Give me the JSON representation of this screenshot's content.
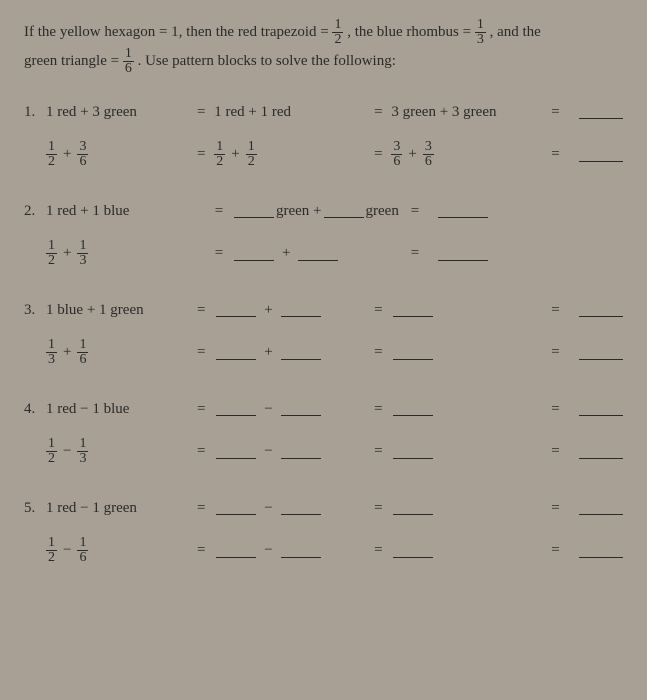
{
  "intro": {
    "part1": "If the yellow hexagon = 1, then the red trapezoid = ",
    "frac1": {
      "num": "1",
      "den": "2"
    },
    "part2": ", the blue rhombus = ",
    "frac2": {
      "num": "1",
      "den": "3"
    },
    "part3": ", and the",
    "part4": "green triangle = ",
    "frac3": {
      "num": "1",
      "den": "6"
    },
    "part5": ". Use pattern blocks to solve the following:"
  },
  "p1": {
    "num": "1.",
    "left": "1 red + 3 green",
    "mid": "1 red + 1 red",
    "right": "3 green + 3 green",
    "fL1": {
      "num": "1",
      "den": "2"
    },
    "fL2": {
      "num": "3",
      "den": "6"
    },
    "fM1": {
      "num": "1",
      "den": "2"
    },
    "fM2": {
      "num": "1",
      "den": "2"
    },
    "fR1": {
      "num": "3",
      "den": "6"
    },
    "fR2": {
      "num": "3",
      "den": "6"
    },
    "op": "+"
  },
  "p2": {
    "num": "2.",
    "left": "1 red + 1 blue",
    "mid_pre": "green +",
    "mid_post": "green",
    "fL1": {
      "num": "1",
      "den": "2"
    },
    "fL2": {
      "num": "1",
      "den": "3"
    },
    "op": "+"
  },
  "p3": {
    "num": "3.",
    "left": "1 blue + 1 green",
    "fL1": {
      "num": "1",
      "den": "3"
    },
    "fL2": {
      "num": "1",
      "den": "6"
    },
    "op": "+"
  },
  "p4": {
    "num": "4.",
    "left": "1 red − 1 blue",
    "fL1": {
      "num": "1",
      "den": "2"
    },
    "fL2": {
      "num": "1",
      "den": "3"
    },
    "op": "−"
  },
  "p5": {
    "num": "5.",
    "left": "1 red − 1 green",
    "fL1": {
      "num": "1",
      "den": "2"
    },
    "fL2": {
      "num": "1",
      "den": "6"
    },
    "op": "−"
  },
  "sym": {
    "plus": "+",
    "minus": "−",
    "eq": "="
  }
}
